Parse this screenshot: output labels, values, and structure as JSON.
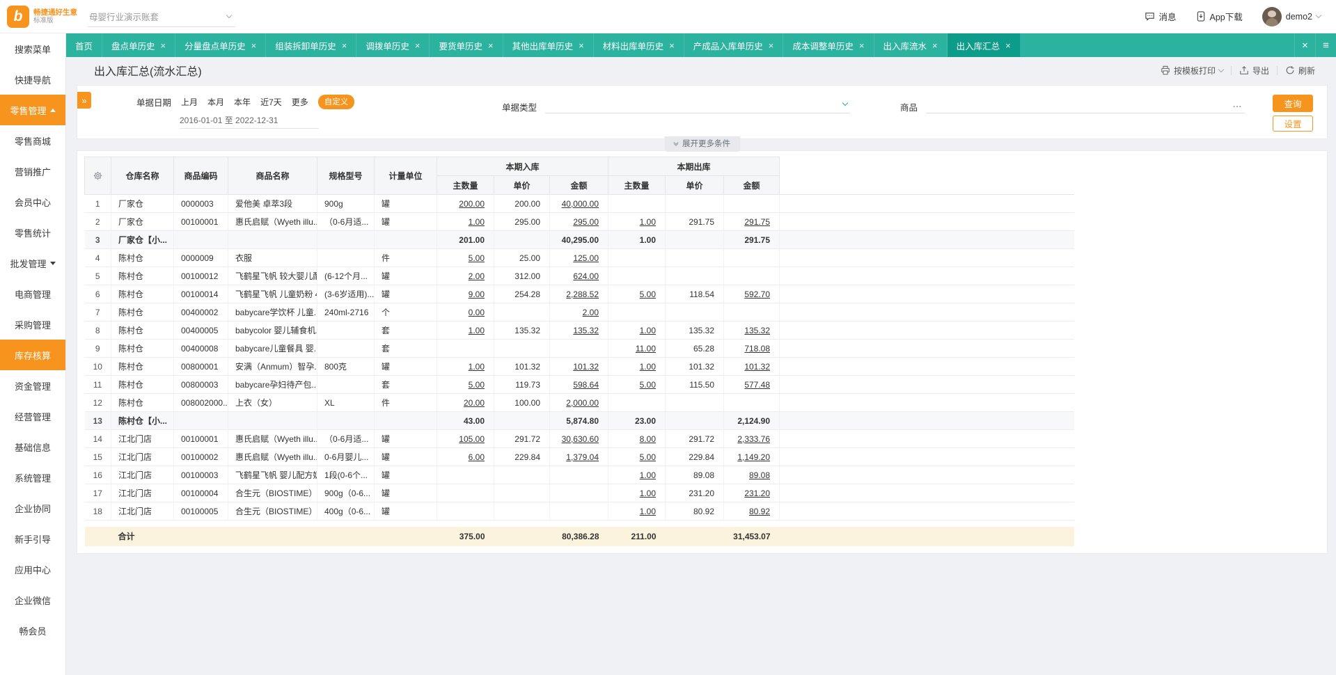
{
  "icons": {
    "close": "×",
    "menu": "≡",
    "collapse": "»",
    "dots": "...",
    "logo_glyph": "b"
  },
  "topbar": {
    "logo_name": "畅捷通好生意",
    "logo_sub": "标准版",
    "account_value": "母婴行业演示账套",
    "messages_label": "消息",
    "app_download_label": "App下载",
    "username": "demo2"
  },
  "tabbar": {
    "tabs": [
      {
        "key": "home",
        "label": "首页",
        "closable": false,
        "active": false
      },
      {
        "key": "check-history",
        "label": "盘点单历史",
        "closable": true,
        "active": false
      },
      {
        "key": "batch-check-history",
        "label": "分量盘点单历史",
        "closable": true,
        "active": false
      },
      {
        "key": "assembly-history",
        "label": "组装拆卸单历史",
        "closable": true,
        "active": false
      },
      {
        "key": "transfer-history",
        "label": "调拨单历史",
        "closable": true,
        "active": false
      },
      {
        "key": "requisition-history",
        "label": "要货单历史",
        "closable": true,
        "active": false
      },
      {
        "key": "other-outbound-history",
        "label": "其他出库单历史",
        "closable": true,
        "active": false
      },
      {
        "key": "material-outbound-history",
        "label": "材料出库单历史",
        "closable": true,
        "active": false
      },
      {
        "key": "finished-inbound-history",
        "label": "产成品入库单历史",
        "closable": true,
        "active": false
      },
      {
        "key": "cost-adjustment-history",
        "label": "成本调整单历史",
        "closable": true,
        "active": false
      },
      {
        "key": "inout-flow",
        "label": "出入库流水",
        "closable": true,
        "active": false
      },
      {
        "key": "inout-summary",
        "label": "出入库汇总",
        "closable": true,
        "active": true
      }
    ]
  },
  "sidebar": {
    "items": [
      {
        "key": "search-menu",
        "label": "搜索菜单",
        "type": "plain"
      },
      {
        "key": "quick-nav",
        "label": "快捷导航",
        "type": "plain"
      },
      {
        "key": "retail-management",
        "label": "零售管理",
        "type": "group-expanded"
      },
      {
        "key": "retail-mall",
        "label": "零售商城",
        "type": "sub"
      },
      {
        "key": "marketing",
        "label": "营销推广",
        "type": "sub"
      },
      {
        "key": "member-center",
        "label": "会员中心",
        "type": "sub"
      },
      {
        "key": "retail-stats",
        "label": "零售统计",
        "type": "sub"
      },
      {
        "key": "wholesale-management",
        "label": "批发管理",
        "type": "group-collapsed"
      },
      {
        "key": "ecommerce-management",
        "label": "电商管理",
        "type": "plain"
      },
      {
        "key": "purchase-management",
        "label": "采购管理",
        "type": "plain"
      },
      {
        "key": "inventory-accounting",
        "label": "库存核算",
        "type": "active"
      },
      {
        "key": "funds-management",
        "label": "资金管理",
        "type": "plain"
      },
      {
        "key": "operation-management",
        "label": "经营管理",
        "type": "plain"
      },
      {
        "key": "basic-info",
        "label": "基础信息",
        "type": "plain"
      },
      {
        "key": "system-management",
        "label": "系统管理",
        "type": "plain"
      },
      {
        "key": "enterprise-collaboration",
        "label": "企业协同",
        "type": "plain"
      },
      {
        "key": "beginner-guide",
        "label": "新手引导",
        "type": "plain"
      },
      {
        "key": "app-center",
        "label": "应用中心",
        "type": "plain"
      },
      {
        "key": "enterprise-wechat",
        "label": "企业微信",
        "type": "plain"
      },
      {
        "key": "chang-member",
        "label": "畅会员",
        "type": "plain"
      }
    ]
  },
  "page": {
    "title": "出入库汇总(流水汇总)",
    "print_label": "按模板打印",
    "export_label": "导出",
    "refresh_label": "刷新"
  },
  "filters": {
    "date_label": "单据日期",
    "date_quick": [
      "上月",
      "本月",
      "本年",
      "近7天",
      "更多"
    ],
    "date_custom": "自定义",
    "date_range": "2016-01-01 至 2022-12-31",
    "doc_type_label": "单据类型",
    "product_label": "商品",
    "search_button": "查询",
    "settings_button": "设置",
    "expand_more": "展开更多条件"
  },
  "table": {
    "headers": {
      "warehouse": "仓库名称",
      "code": "商品编码",
      "name": "商品名称",
      "spec": "规格型号",
      "unit": "计量单位",
      "in_group": "本期入库",
      "out_group": "本期出库",
      "qty": "主数量",
      "price": "单价",
      "amount": "金额"
    },
    "rows": [
      {
        "num": "1",
        "warehouse": "厂家仓",
        "code": "0000003",
        "name": "爱他美 卓萃3段",
        "spec": "900g",
        "unit": "罐",
        "in_qty": "200.00",
        "in_price": "200.00",
        "in_amt": "40,000.00",
        "out_qty": "",
        "out_price": "",
        "out_amt": "",
        "subtotal": false
      },
      {
        "num": "2",
        "warehouse": "厂家仓",
        "code": "00100001",
        "name": "惠氏启赋（Wyeth illu...",
        "spec": "（0-6月适...",
        "unit": "罐",
        "in_qty": "1.00",
        "in_price": "295.00",
        "in_amt": "295.00",
        "out_qty": "1.00",
        "out_price": "291.75",
        "out_amt": "291.75",
        "subtotal": false
      },
      {
        "num": "3",
        "warehouse": "厂家仓【小...",
        "code": "",
        "name": "",
        "spec": "",
        "unit": "",
        "in_qty": "201.00",
        "in_price": "",
        "in_amt": "40,295.00",
        "out_qty": "1.00",
        "out_price": "",
        "out_amt": "291.75",
        "subtotal": true
      },
      {
        "num": "4",
        "warehouse": "陈村仓",
        "code": "0000009",
        "name": "衣服",
        "spec": "",
        "unit": "件",
        "in_qty": "5.00",
        "in_price": "25.00",
        "in_amt": "125.00",
        "out_qty": "",
        "out_price": "",
        "out_amt": "",
        "subtotal": false
      },
      {
        "num": "5",
        "warehouse": "陈村仓",
        "code": "00100012",
        "name": "飞鹤星飞帆 较大婴儿配...",
        "spec": "(6-12个月...",
        "unit": "罐",
        "in_qty": "2.00",
        "in_price": "312.00",
        "in_amt": "624.00",
        "out_qty": "",
        "out_price": "",
        "out_amt": "",
        "subtotal": false
      },
      {
        "num": "6",
        "warehouse": "陈村仓",
        "code": "00100014",
        "name": "飞鹤星飞帆 儿童奶粉 4...",
        "spec": "(3-6岁适用)...",
        "unit": "罐",
        "in_qty": "9.00",
        "in_price": "254.28",
        "in_amt": "2,288.52",
        "out_qty": "5.00",
        "out_price": "118.54",
        "out_amt": "592.70",
        "subtotal": false
      },
      {
        "num": "7",
        "warehouse": "陈村仓",
        "code": "00400002",
        "name": "babycare学饮杯 儿童...",
        "spec": "240ml-2716",
        "unit": "个",
        "in_qty": "0.00",
        "in_price": "",
        "in_amt": "2.00",
        "out_qty": "",
        "out_price": "",
        "out_amt": "",
        "subtotal": false
      },
      {
        "num": "8",
        "warehouse": "陈村仓",
        "code": "00400005",
        "name": "babycolor 婴儿辅食机...",
        "spec": "",
        "unit": "套",
        "in_qty": "1.00",
        "in_price": "135.32",
        "in_amt": "135.32",
        "out_qty": "1.00",
        "out_price": "135.32",
        "out_amt": "135.32",
        "subtotal": false
      },
      {
        "num": "9",
        "warehouse": "陈村仓",
        "code": "00400008",
        "name": "babycare儿童餐具 婴...",
        "spec": "",
        "unit": "套",
        "in_qty": "",
        "in_price": "",
        "in_amt": "",
        "out_qty": "11.00",
        "out_price": "65.28",
        "out_amt": "718.08",
        "subtotal": false
      },
      {
        "num": "10",
        "warehouse": "陈村仓",
        "code": "00800001",
        "name": "安满（Anmum）智孕...",
        "spec": "800克",
        "unit": "罐",
        "in_qty": "1.00",
        "in_price": "101.32",
        "in_amt": "101.32",
        "out_qty": "1.00",
        "out_price": "101.32",
        "out_amt": "101.32",
        "subtotal": false
      },
      {
        "num": "11",
        "warehouse": "陈村仓",
        "code": "00800003",
        "name": "babycare孕妇待产包...",
        "spec": "",
        "unit": "套",
        "in_qty": "5.00",
        "in_price": "119.73",
        "in_amt": "598.64",
        "out_qty": "5.00",
        "out_price": "115.50",
        "out_amt": "577.48",
        "subtotal": false
      },
      {
        "num": "12",
        "warehouse": "陈村仓",
        "code": "008002000...",
        "name": "上衣（女）",
        "spec": "XL",
        "unit": "件",
        "in_qty": "20.00",
        "in_price": "100.00",
        "in_amt": "2,000.00",
        "out_qty": "",
        "out_price": "",
        "out_amt": "",
        "subtotal": false
      },
      {
        "num": "13",
        "warehouse": "陈村仓【小...",
        "code": "",
        "name": "",
        "spec": "",
        "unit": "",
        "in_qty": "43.00",
        "in_price": "",
        "in_amt": "5,874.80",
        "out_qty": "23.00",
        "out_price": "",
        "out_amt": "2,124.90",
        "subtotal": true
      },
      {
        "num": "14",
        "warehouse": "江北门店",
        "code": "00100001",
        "name": "惠氏启赋（Wyeth illu...",
        "spec": "（0-6月适...",
        "unit": "罐",
        "in_qty": "105.00",
        "in_price": "291.72",
        "in_amt": "30,630.60",
        "out_qty": "8.00",
        "out_price": "291.72",
        "out_amt": "2,333.76",
        "subtotal": false
      },
      {
        "num": "15",
        "warehouse": "江北门店",
        "code": "00100002",
        "name": "惠氏启赋（Wyeth illu...",
        "spec": "0-6月婴儿...",
        "unit": "罐",
        "in_qty": "6.00",
        "in_price": "229.84",
        "in_amt": "1,379.04",
        "out_qty": "5.00",
        "out_price": "229.84",
        "out_amt": "1,149.20",
        "subtotal": false
      },
      {
        "num": "16",
        "warehouse": "江北门店",
        "code": "00100003",
        "name": "飞鹤星飞帆 婴儿配方奶...",
        "spec": "1段(0-6个...",
        "unit": "罐",
        "in_qty": "",
        "in_price": "",
        "in_amt": "",
        "out_qty": "1.00",
        "out_price": "89.08",
        "out_amt": "89.08",
        "subtotal": false
      },
      {
        "num": "17",
        "warehouse": "江北门店",
        "code": "00100004",
        "name": "合生元（BIOSTIME）...",
        "spec": "900g（0-6...",
        "unit": "罐",
        "in_qty": "",
        "in_price": "",
        "in_amt": "",
        "out_qty": "1.00",
        "out_price": "231.20",
        "out_amt": "231.20",
        "subtotal": false
      },
      {
        "num": "18",
        "warehouse": "江北门店",
        "code": "00100005",
        "name": "合生元（BIOSTIME）...",
        "spec": "400g（0-6...",
        "unit": "罐",
        "in_qty": "",
        "in_price": "",
        "in_amt": "",
        "out_qty": "1.00",
        "out_price": "80.92",
        "out_amt": "80.92",
        "subtotal": false
      }
    ],
    "total": {
      "label": "合计",
      "in_qty": "375.00",
      "in_amt": "80,386.28",
      "out_qty": "211.00",
      "out_amt": "31,453.07"
    }
  }
}
